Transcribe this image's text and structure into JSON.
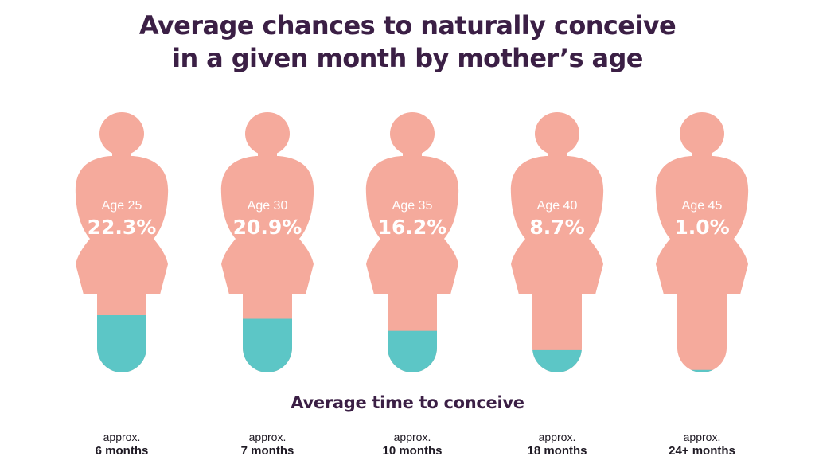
{
  "title_line1": "Average chances to naturally conceive",
  "title_line2": "in a given month by mother’s age",
  "subtitle": "Average time to conceive",
  "colors": {
    "figure": "#f5aa9c",
    "fill": "#5cc6c6",
    "title": "#3b1f45"
  },
  "chart_data": {
    "type": "bar",
    "title": "Average chances to naturally conceive in a given month by mother’s age",
    "categories": [
      "Age 25",
      "Age 30",
      "Age 35",
      "Age 40",
      "Age 45"
    ],
    "values": [
      22.3,
      20.9,
      16.2,
      8.7,
      1.0
    ],
    "value_labels": [
      "22.3%",
      "20.9%",
      "16.2%",
      "8.7%",
      "1.0%"
    ],
    "value_unit": "%",
    "max_scale": 22.3,
    "time_prefix": "approx.",
    "time_to_conceive": [
      "6 months",
      "7 months",
      "10 months",
      "18 months",
      "24+ months"
    ]
  }
}
